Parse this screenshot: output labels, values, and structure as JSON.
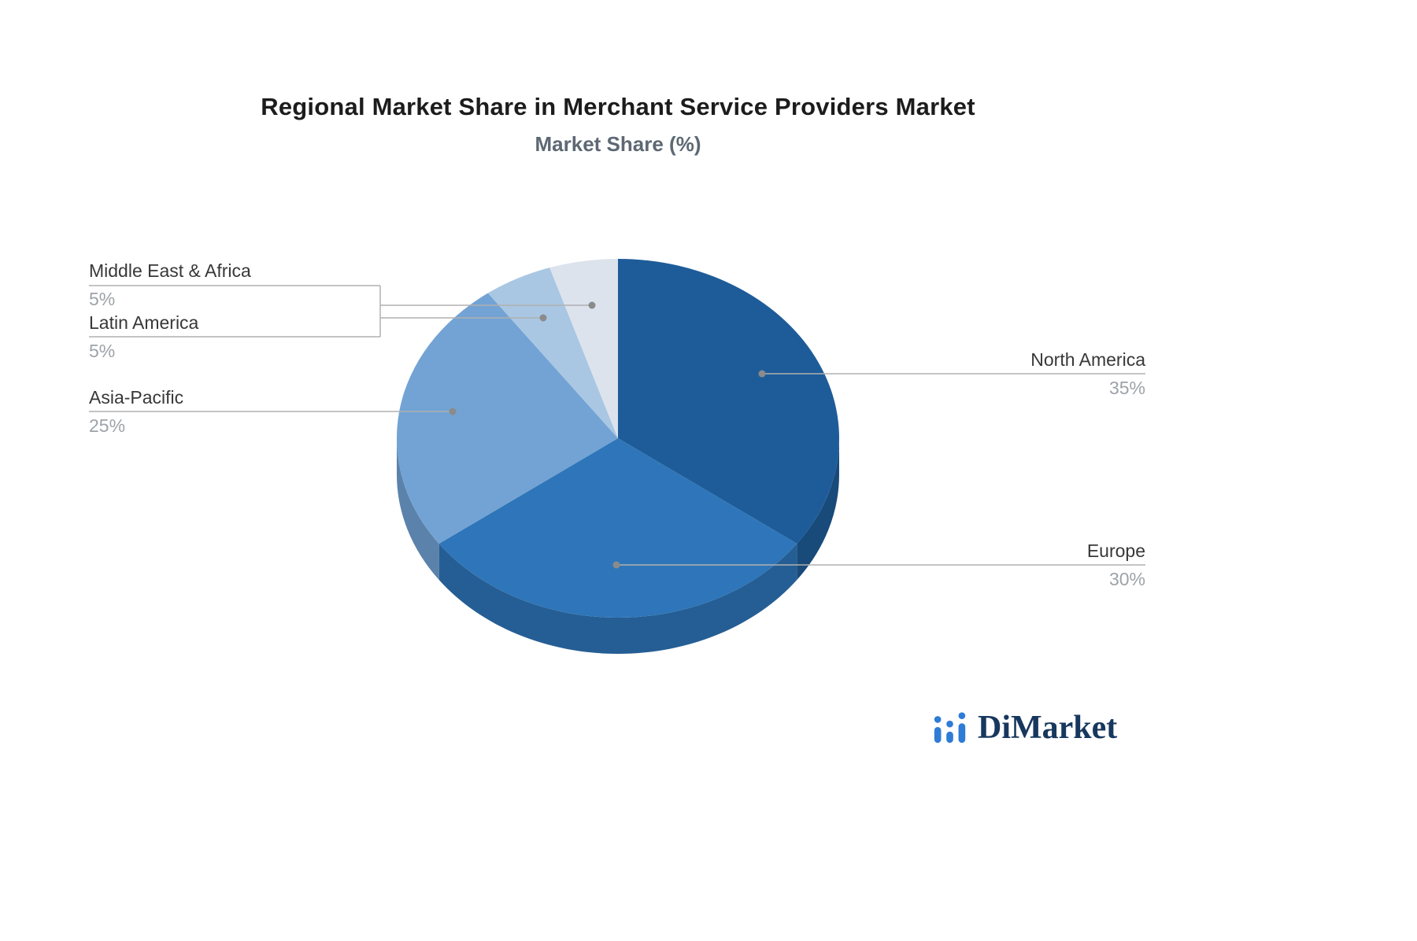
{
  "chart_data": {
    "type": "pie",
    "style": "3d",
    "title": "Regional Market Share in Merchant Service Providers Market",
    "subtitle": "Market Share (%)",
    "unit": "%",
    "start_angle": "top",
    "direction": "clockwise",
    "legend_position": "callouts",
    "categories": [
      "North America",
      "Europe",
      "Asia-Pacific",
      "Latin America",
      "Middle East & Africa"
    ],
    "values": [
      35,
      30,
      25,
      5,
      5
    ],
    "value_labels": [
      "35%",
      "30%",
      "25%",
      "5%",
      "5%"
    ],
    "colors": [
      "#1e5c99",
      "#2e76b9",
      "#72a3d4",
      "#a9c7e3",
      "#dce3ec"
    ],
    "label_color": "#383838",
    "value_color": "#9da3a9",
    "leader_color": "#b0b0b0",
    "dot_color": "#8b8b8b"
  },
  "branding": {
    "logo_text": "DiMarket",
    "logo_color": "#17375e",
    "icon_color": "#2e7cd6"
  }
}
